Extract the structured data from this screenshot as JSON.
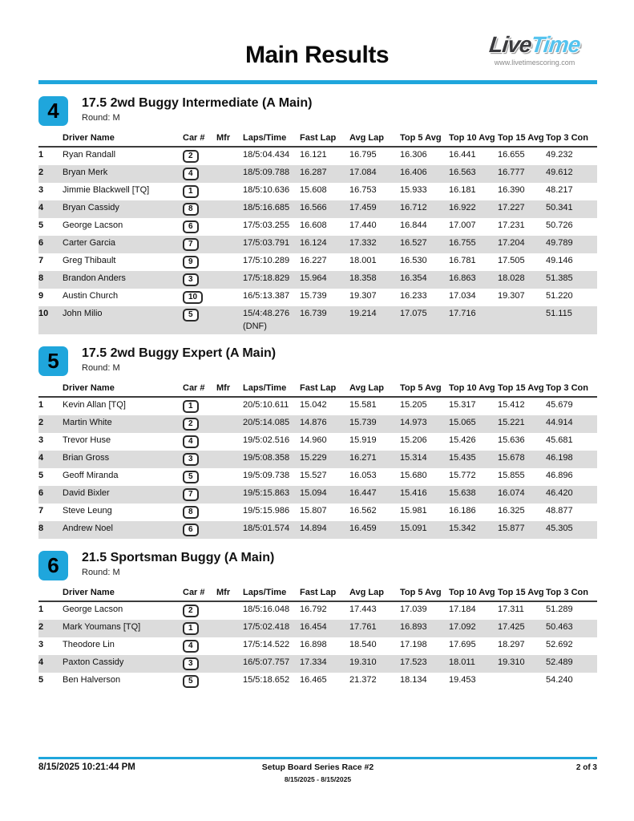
{
  "header": {
    "title": "Main Results",
    "logo_live": "Live",
    "logo_time": "Time",
    "logo_url": "www.livetimescoring.com"
  },
  "colors": {
    "accent": "#1fa6dc",
    "row_alt": "#dcdcdc",
    "logo_time_color": "#55c3ee"
  },
  "table_columns": [
    "Driver Name",
    "Car #",
    "Mfr",
    "Laps/Time",
    "Fast Lap",
    "Avg Lap",
    "Top 5 Avg",
    "Top 10 Avg",
    "Top 15 Avg",
    "Top 3 Con"
  ],
  "races": [
    {
      "number": "4",
      "title": "17.5 2wd Buggy Intermediate (A Main)",
      "round": "Round: M",
      "rows": [
        {
          "pos": "1",
          "driver": "Ryan Randall",
          "car": "2",
          "mfr": "",
          "laps_time": "18/5:04.434",
          "laps_note": "",
          "fast_lap": "16.121",
          "avg_lap": "16.795",
          "top5_avg": "16.306",
          "top10_avg": "16.441",
          "top15_avg": "16.655",
          "top3_con": "49.232"
        },
        {
          "pos": "2",
          "driver": "Bryan Merk",
          "car": "4",
          "mfr": "",
          "laps_time": "18/5:09.788",
          "laps_note": "",
          "fast_lap": "16.287",
          "avg_lap": "17.084",
          "top5_avg": "16.406",
          "top10_avg": "16.563",
          "top15_avg": "16.777",
          "top3_con": "49.612"
        },
        {
          "pos": "3",
          "driver": "Jimmie Blackwell [TQ]",
          "car": "1",
          "mfr": "",
          "laps_time": "18/5:10.636",
          "laps_note": "",
          "fast_lap": "15.608",
          "avg_lap": "16.753",
          "top5_avg": "15.933",
          "top10_avg": "16.181",
          "top15_avg": "16.390",
          "top3_con": "48.217"
        },
        {
          "pos": "4",
          "driver": "Bryan Cassidy",
          "car": "8",
          "mfr": "",
          "laps_time": "18/5:16.685",
          "laps_note": "",
          "fast_lap": "16.566",
          "avg_lap": "17.459",
          "top5_avg": "16.712",
          "top10_avg": "16.922",
          "top15_avg": "17.227",
          "top3_con": "50.341"
        },
        {
          "pos": "5",
          "driver": "George Lacson",
          "car": "6",
          "mfr": "",
          "laps_time": "17/5:03.255",
          "laps_note": "",
          "fast_lap": "16.608",
          "avg_lap": "17.440",
          "top5_avg": "16.844",
          "top10_avg": "17.007",
          "top15_avg": "17.231",
          "top3_con": "50.726"
        },
        {
          "pos": "6",
          "driver": "Carter Garcia",
          "car": "7",
          "mfr": "",
          "laps_time": "17/5:03.791",
          "laps_note": "",
          "fast_lap": "16.124",
          "avg_lap": "17.332",
          "top5_avg": "16.527",
          "top10_avg": "16.755",
          "top15_avg": "17.204",
          "top3_con": "49.789"
        },
        {
          "pos": "7",
          "driver": "Greg Thibault",
          "car": "9",
          "mfr": "",
          "laps_time": "17/5:10.289",
          "laps_note": "",
          "fast_lap": "16.227",
          "avg_lap": "18.001",
          "top5_avg": "16.530",
          "top10_avg": "16.781",
          "top15_avg": "17.505",
          "top3_con": "49.146"
        },
        {
          "pos": "8",
          "driver": "Brandon Anders",
          "car": "3",
          "mfr": "",
          "laps_time": "17/5:18.829",
          "laps_note": "",
          "fast_lap": "15.964",
          "avg_lap": "18.358",
          "top5_avg": "16.354",
          "top10_avg": "16.863",
          "top15_avg": "18.028",
          "top3_con": "51.385"
        },
        {
          "pos": "9",
          "driver": "Austin Church",
          "car": "10",
          "mfr": "",
          "laps_time": "16/5:13.387",
          "laps_note": "",
          "fast_lap": "15.739",
          "avg_lap": "19.307",
          "top5_avg": "16.233",
          "top10_avg": "17.034",
          "top15_avg": "19.307",
          "top3_con": "51.220"
        },
        {
          "pos": "10",
          "driver": "John Milio",
          "car": "5",
          "mfr": "",
          "laps_time": "15/4:48.276",
          "laps_note": "(DNF)",
          "fast_lap": "16.739",
          "avg_lap": "19.214",
          "top5_avg": "17.075",
          "top10_avg": "17.716",
          "top15_avg": "",
          "top3_con": "51.115"
        }
      ]
    },
    {
      "number": "5",
      "title": "17.5 2wd Buggy Expert (A Main)",
      "round": "Round: M",
      "rows": [
        {
          "pos": "1",
          "driver": "Kevin Allan [TQ]",
          "car": "1",
          "mfr": "",
          "laps_time": "20/5:10.611",
          "laps_note": "",
          "fast_lap": "15.042",
          "avg_lap": "15.581",
          "top5_avg": "15.205",
          "top10_avg": "15.317",
          "top15_avg": "15.412",
          "top3_con": "45.679"
        },
        {
          "pos": "2",
          "driver": "Martin White",
          "car": "2",
          "mfr": "",
          "laps_time": "20/5:14.085",
          "laps_note": "",
          "fast_lap": "14.876",
          "avg_lap": "15.739",
          "top5_avg": "14.973",
          "top10_avg": "15.065",
          "top15_avg": "15.221",
          "top3_con": "44.914"
        },
        {
          "pos": "3",
          "driver": "Trevor Huse",
          "car": "4",
          "mfr": "",
          "laps_time": "19/5:02.516",
          "laps_note": "",
          "fast_lap": "14.960",
          "avg_lap": "15.919",
          "top5_avg": "15.206",
          "top10_avg": "15.426",
          "top15_avg": "15.636",
          "top3_con": "45.681"
        },
        {
          "pos": "4",
          "driver": "Brian Gross",
          "car": "3",
          "mfr": "",
          "laps_time": "19/5:08.358",
          "laps_note": "",
          "fast_lap": "15.229",
          "avg_lap": "16.271",
          "top5_avg": "15.314",
          "top10_avg": "15.435",
          "top15_avg": "15.678",
          "top3_con": "46.198"
        },
        {
          "pos": "5",
          "driver": "Geoff Miranda",
          "car": "5",
          "mfr": "",
          "laps_time": "19/5:09.738",
          "laps_note": "",
          "fast_lap": "15.527",
          "avg_lap": "16.053",
          "top5_avg": "15.680",
          "top10_avg": "15.772",
          "top15_avg": "15.855",
          "top3_con": "46.896"
        },
        {
          "pos": "6",
          "driver": "David Bixler",
          "car": "7",
          "mfr": "",
          "laps_time": "19/5:15.863",
          "laps_note": "",
          "fast_lap": "15.094",
          "avg_lap": "16.447",
          "top5_avg": "15.416",
          "top10_avg": "15.638",
          "top15_avg": "16.074",
          "top3_con": "46.420"
        },
        {
          "pos": "7",
          "driver": "Steve Leung",
          "car": "8",
          "mfr": "",
          "laps_time": "19/5:15.986",
          "laps_note": "",
          "fast_lap": "15.807",
          "avg_lap": "16.562",
          "top5_avg": "15.981",
          "top10_avg": "16.186",
          "top15_avg": "16.325",
          "top3_con": "48.877"
        },
        {
          "pos": "8",
          "driver": "Andrew Noel",
          "car": "6",
          "mfr": "",
          "laps_time": "18/5:01.574",
          "laps_note": "",
          "fast_lap": "14.894",
          "avg_lap": "16.459",
          "top5_avg": "15.091",
          "top10_avg": "15.342",
          "top15_avg": "15.877",
          "top3_con": "45.305"
        }
      ]
    },
    {
      "number": "6",
      "title": "21.5 Sportsman Buggy (A Main)",
      "round": "Round: M",
      "rows": [
        {
          "pos": "1",
          "driver": "George Lacson",
          "car": "2",
          "mfr": "",
          "laps_time": "18/5:16.048",
          "laps_note": "",
          "fast_lap": "16.792",
          "avg_lap": "17.443",
          "top5_avg": "17.039",
          "top10_avg": "17.184",
          "top15_avg": "17.311",
          "top3_con": "51.289"
        },
        {
          "pos": "2",
          "driver": "Mark Youmans [TQ]",
          "car": "1",
          "mfr": "",
          "laps_time": "17/5:02.418",
          "laps_note": "",
          "fast_lap": "16.454",
          "avg_lap": "17.761",
          "top5_avg": "16.893",
          "top10_avg": "17.092",
          "top15_avg": "17.425",
          "top3_con": "50.463"
        },
        {
          "pos": "3",
          "driver": "Theodore Lin",
          "car": "4",
          "mfr": "",
          "laps_time": "17/5:14.522",
          "laps_note": "",
          "fast_lap": "16.898",
          "avg_lap": "18.540",
          "top5_avg": "17.198",
          "top10_avg": "17.695",
          "top15_avg": "18.297",
          "top3_con": "52.692"
        },
        {
          "pos": "4",
          "driver": "Paxton Cassidy",
          "car": "3",
          "mfr": "",
          "laps_time": "16/5:07.757",
          "laps_note": "",
          "fast_lap": "17.334",
          "avg_lap": "19.310",
          "top5_avg": "17.523",
          "top10_avg": "18.011",
          "top15_avg": "19.310",
          "top3_con": "52.489"
        },
        {
          "pos": "5",
          "driver": "Ben Halverson",
          "car": "5",
          "mfr": "",
          "laps_time": "15/5:18.652",
          "laps_note": "",
          "fast_lap": "16.465",
          "avg_lap": "21.372",
          "top5_avg": "18.134",
          "top10_avg": "19.453",
          "top15_avg": "",
          "top3_con": "54.240"
        }
      ]
    }
  ],
  "footer": {
    "timestamp": "8/15/2025 10:21:44 PM",
    "series": "Setup Board Series Race #2",
    "date_range": "8/15/2025 - 8/15/2025",
    "page_number": "2 of 3"
  }
}
